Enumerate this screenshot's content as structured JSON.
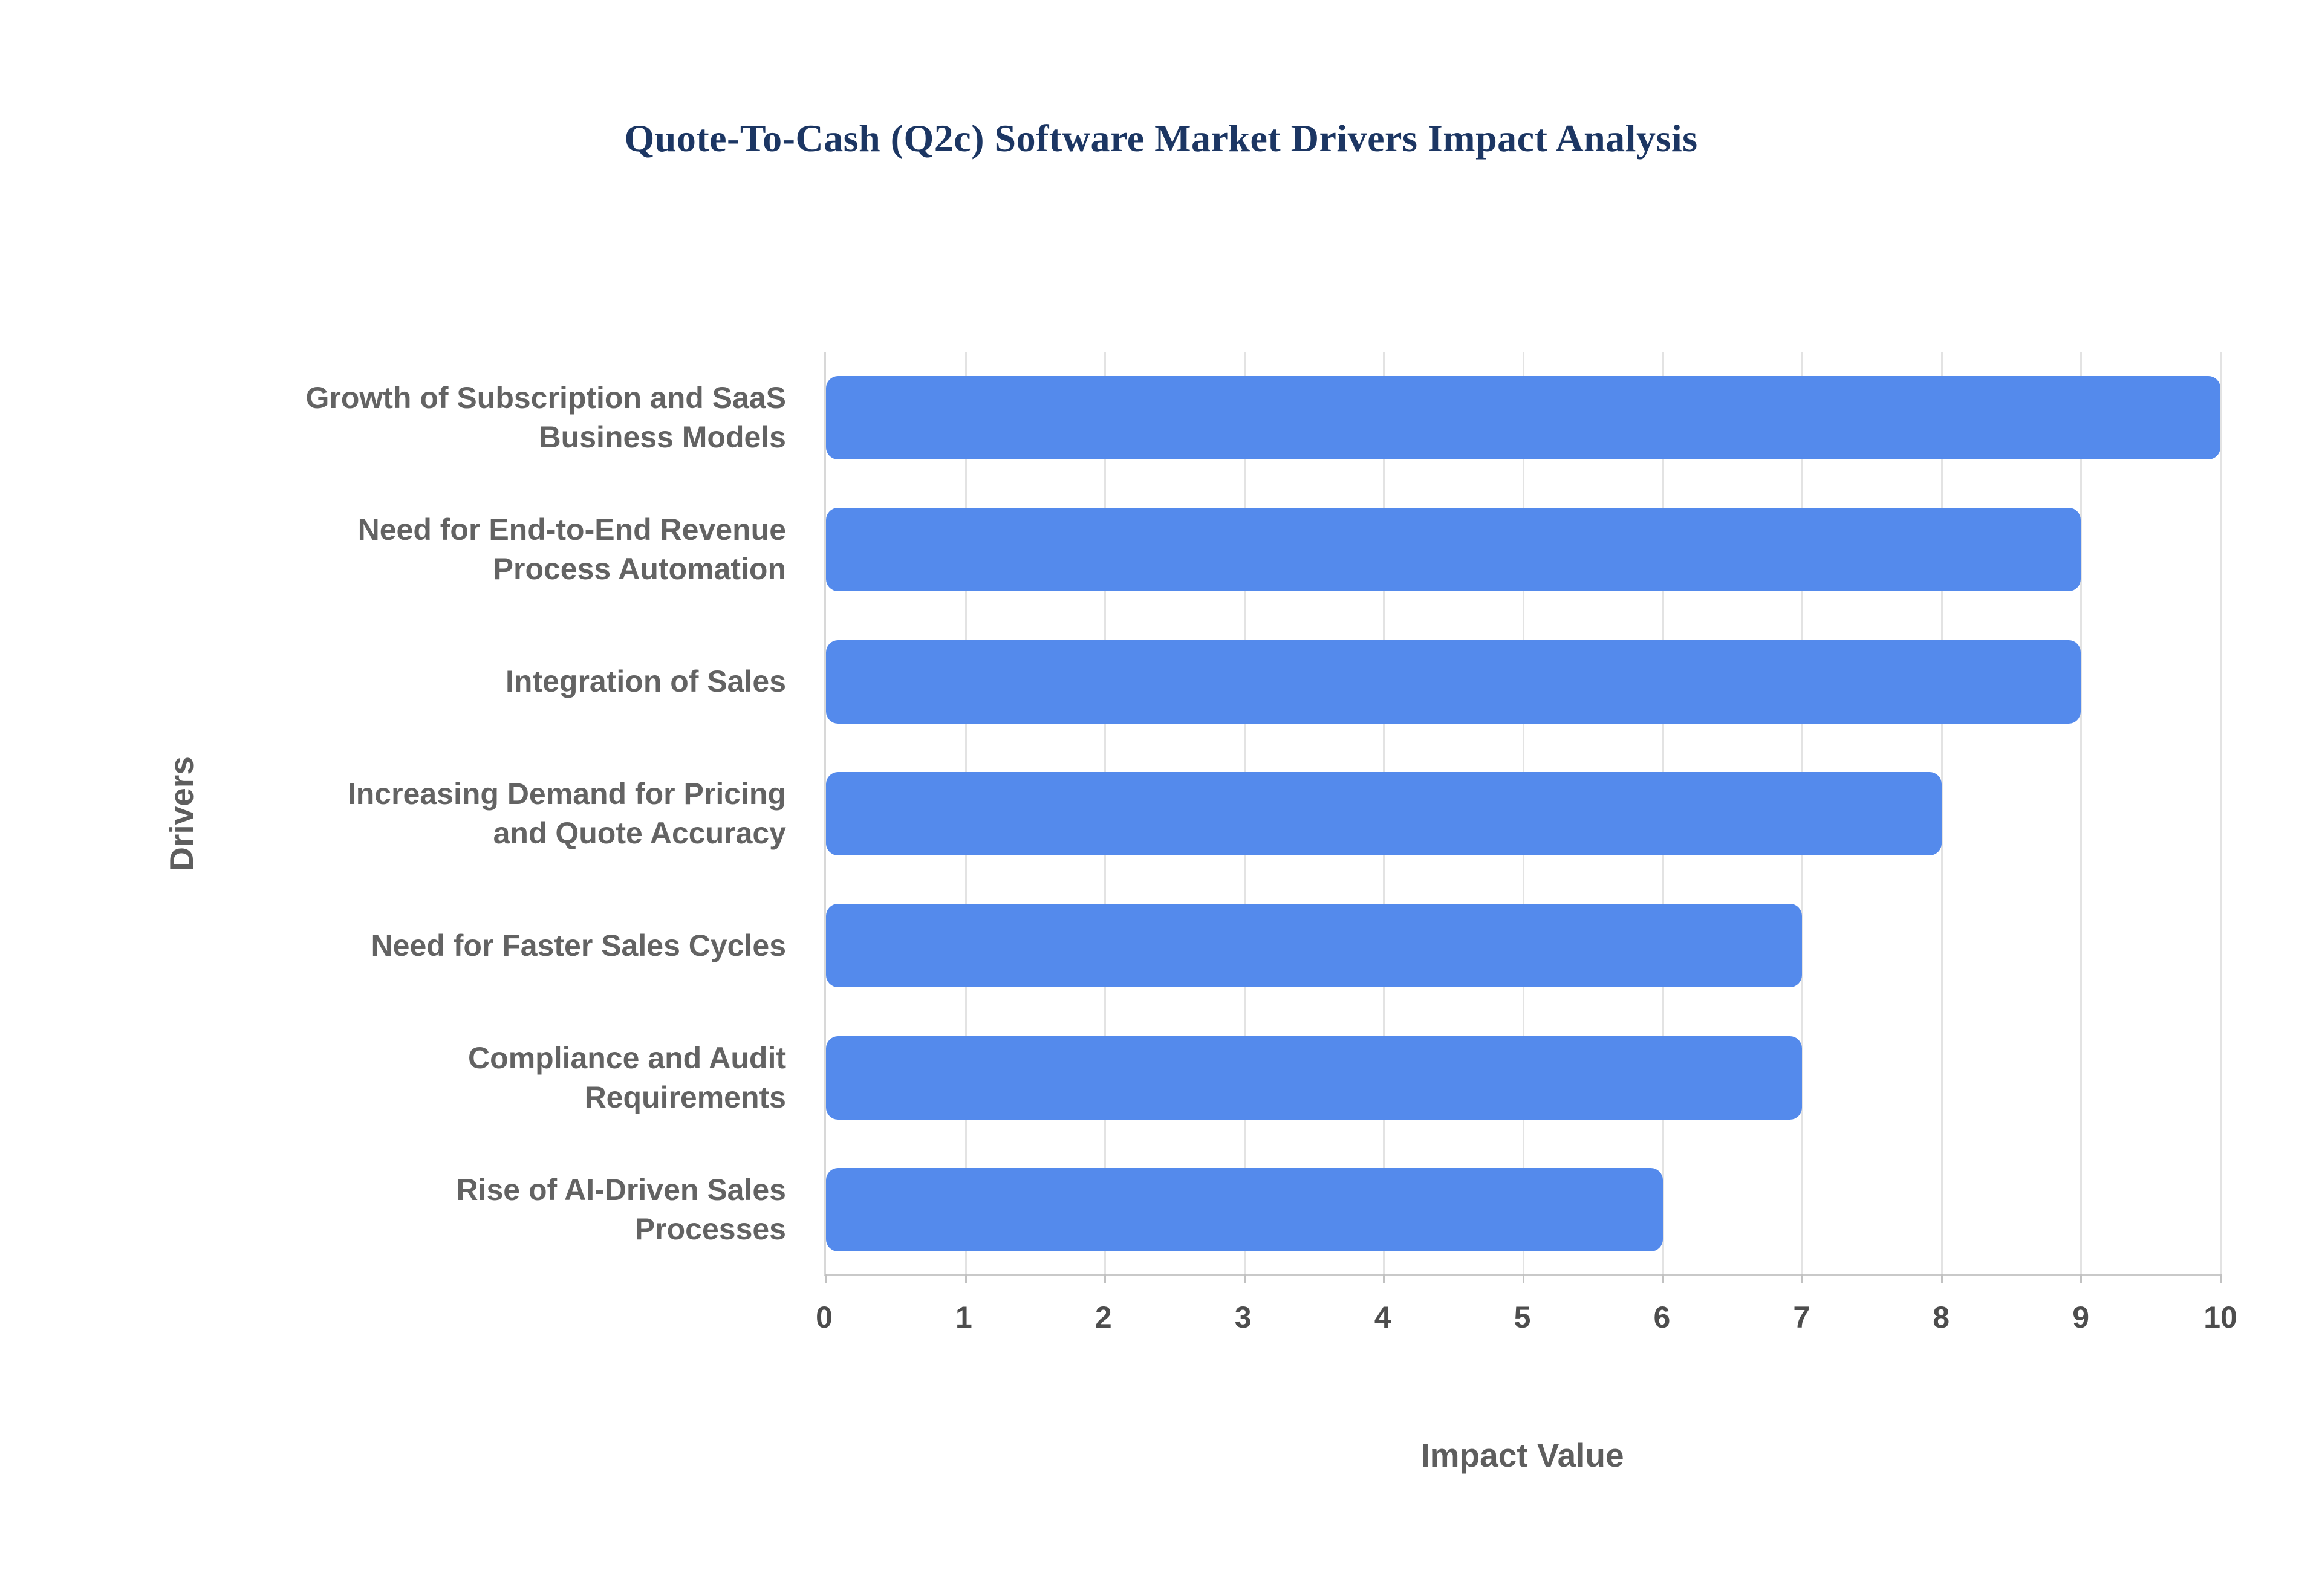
{
  "page": {
    "background_color": "#ffffff"
  },
  "chart_data": {
    "type": "bar",
    "orientation": "horizontal",
    "title": "Quote-To-Cash (Q2c) Software Market Drivers Impact Analysis",
    "xlabel": "Impact Value",
    "ylabel": "Drivers",
    "categories": [
      "Growth of Subscription and SaaS Business Models",
      "Need for End-to-End Revenue Process Automation",
      "Integration of Sales",
      "Increasing Demand for Pricing and Quote Accuracy",
      "Need for Faster Sales Cycles",
      "Compliance and Audit Requirements",
      "Rise of AI-Driven Sales Processes"
    ],
    "values": [
      10,
      9,
      9,
      8,
      7,
      7,
      6
    ],
    "xlim": [
      0,
      10
    ],
    "x_ticks": [
      0,
      1,
      2,
      3,
      4,
      5,
      6,
      7,
      8,
      9,
      10
    ],
    "grid": true,
    "legend": false,
    "bar_color": "#548aec",
    "title_color": "#1c3663",
    "axis_title_color": "#5e5e5e",
    "category_label_color": "#636363",
    "tick_label_color": "#4d4d4d",
    "grid_color": "#e3e3e3"
  }
}
